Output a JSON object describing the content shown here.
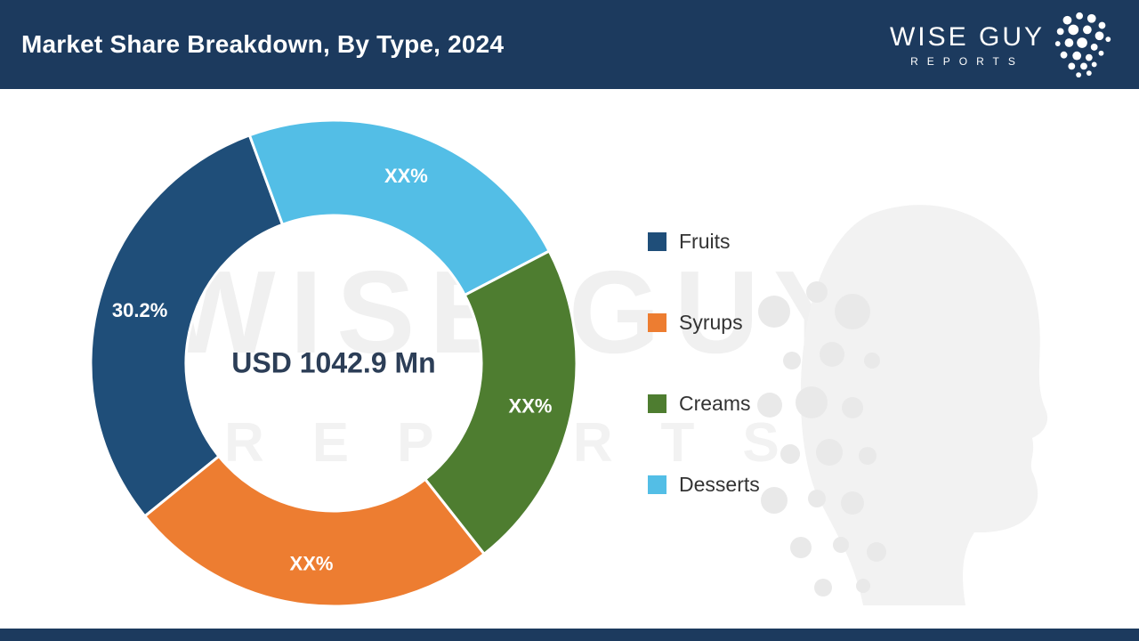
{
  "header": {
    "title": "Market Share Breakdown, By Type, 2024",
    "logo": {
      "line1": "WISE GUY",
      "line2": "REPORTS"
    }
  },
  "watermark": {
    "line1": "WISE GUY",
    "line2": "REPORTS"
  },
  "chart_data": {
    "type": "donut",
    "title": "Market Share Breakdown, By Type, 2024",
    "center_label": "USD 1042.9 Mn",
    "start_angle_deg": 231,
    "slices": [
      {
        "name": "Fruits",
        "label": "30.2%",
        "pct": 30.2,
        "color": "#1F4E79"
      },
      {
        "name": "Desserts",
        "label": "XX%",
        "pct": 23.0,
        "color": "#53BEE6"
      },
      {
        "name": "Creams",
        "label": "XX%",
        "pct": 22.0,
        "color": "#4E7D30"
      },
      {
        "name": "Syrups",
        "label": "XX%",
        "pct": 24.8,
        "color": "#ED7D31"
      }
    ],
    "legend": [
      "Fruits",
      "Syrups",
      "Creams",
      "Desserts"
    ],
    "legend_position": "right"
  },
  "colors": {
    "header_bg": "#1C3A5E",
    "footer_bg": "#1C3A5E",
    "center_text": "#2C3E57",
    "watermark": "#F0F0F0"
  }
}
